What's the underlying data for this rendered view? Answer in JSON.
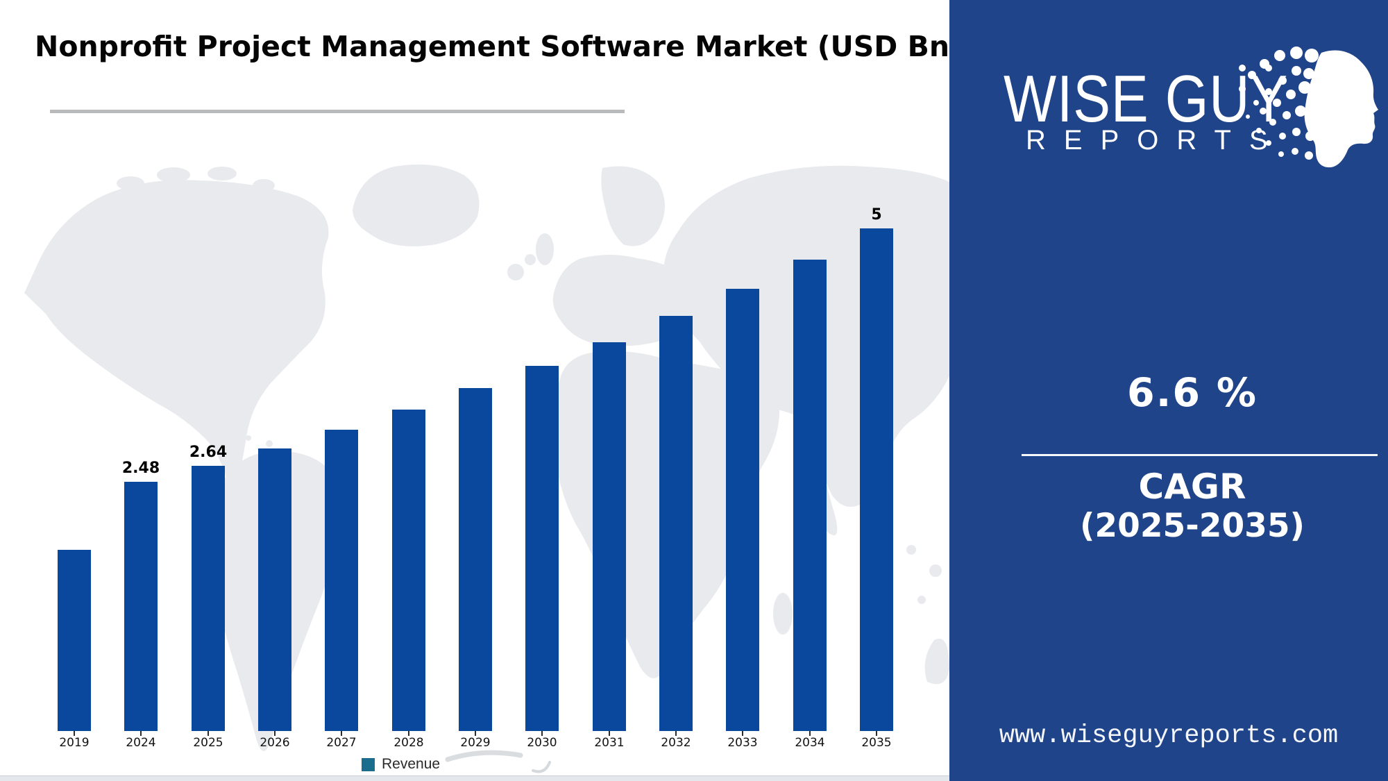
{
  "header": {
    "title": "Nonprofit Project Management Software Market (USD Bn)"
  },
  "chart_data": {
    "type": "bar",
    "title": "Nonprofit Project Management Software Market (USD Bn)",
    "categories": [
      "2019",
      "2024",
      "2025",
      "2026",
      "2027",
      "2028",
      "2029",
      "2030",
      "2031",
      "2032",
      "2033",
      "2034",
      "2035"
    ],
    "values": [
      1.8,
      2.48,
      2.64,
      2.81,
      3.0,
      3.2,
      3.41,
      3.63,
      3.87,
      4.13,
      4.4,
      4.69,
      5.0
    ],
    "bar_labels": [
      "",
      "2.48",
      "2.64",
      "",
      "",
      "",
      "",
      "",
      "",
      "",
      "",
      "",
      "5"
    ],
    "series_name": "Revenue",
    "xlabel": "",
    "ylabel": "",
    "ylim": [
      0,
      5.57
    ],
    "grid": false,
    "legend": {
      "label": "Revenue",
      "position": "bottom-center",
      "swatch_color": "#1b6d8d"
    },
    "bar_color": "#0a489e"
  },
  "sidebar": {
    "background_color": "#1f4489",
    "logo": {
      "line1": "WISE GUY",
      "line2": "REPORTS"
    },
    "stat": {
      "value": "6.6 %",
      "label_line1": "CAGR",
      "label_line2": "(2025-2035)"
    },
    "website": "www.wiseguyreports.com"
  },
  "colors": {
    "bar": "#0a489e",
    "sidebar_background": "#1f4489",
    "legend_swatch": "#1b6d8d",
    "map_watermark": "#e8eaed"
  }
}
